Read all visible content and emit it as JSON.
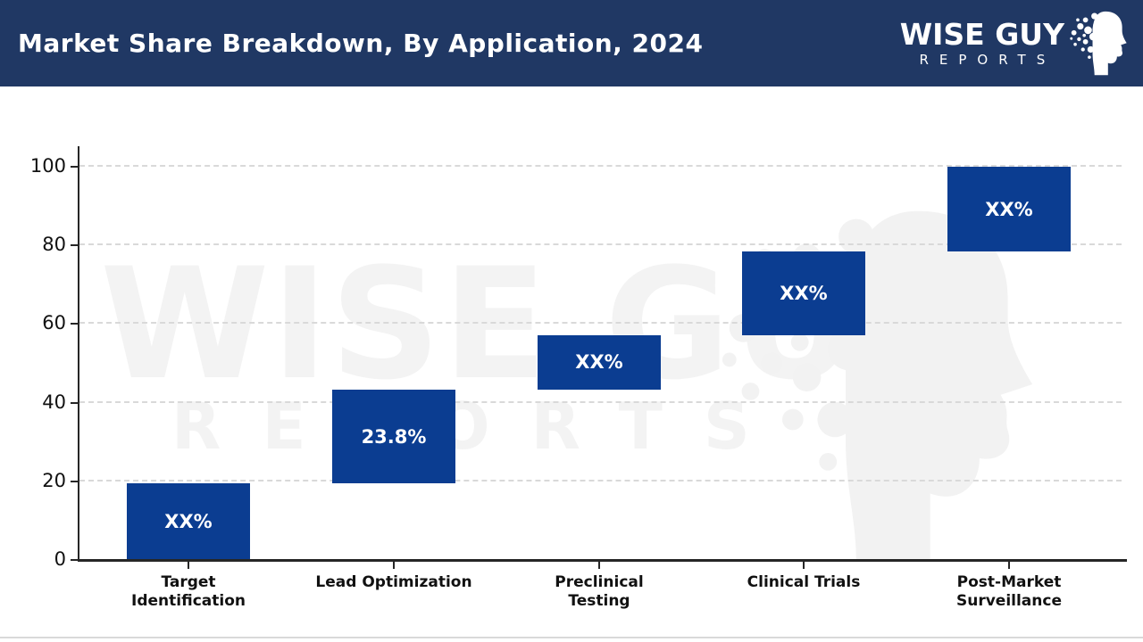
{
  "header": {
    "title": "Market Share Breakdown, By Application, 2024",
    "logo": {
      "line1": "WISE GUY",
      "line2": "REPORTS"
    }
  },
  "watermark": {
    "line1": "WISE GUY",
    "line2": "REPORTS"
  },
  "colors": {
    "header_bg": "#203864",
    "bar": "#0b3d91",
    "bar_label": "#ffffff",
    "axis": "#262626",
    "grid": "#d9d9d9",
    "tick_text": "#111111",
    "watermark": "#f2f2f2"
  },
  "chart_data": {
    "type": "bar",
    "subtype": "waterfall",
    "title": "Market Share Breakdown, By Application, 2024",
    "xlabel": "",
    "ylabel": "",
    "ylim": [
      0,
      105
    ],
    "yticks": [
      0,
      20,
      40,
      60,
      80,
      100
    ],
    "grid": "horizontal-dashed",
    "legend": null,
    "categories": [
      [
        "Target",
        "Identification"
      ],
      [
        "Lead Optimization"
      ],
      [
        "Preclinical",
        "Testing"
      ],
      [
        "Clinical Trials"
      ],
      [
        "Post-Market",
        "Surveillance"
      ]
    ],
    "bars": [
      {
        "category": "Target Identification",
        "start": 0,
        "end": 19.2,
        "label": "XX%"
      },
      {
        "category": "Lead Optimization",
        "start": 19.2,
        "end": 43,
        "label": "23.8%"
      },
      {
        "category": "Preclinical Testing",
        "start": 43,
        "end": 57,
        "label": "XX%"
      },
      {
        "category": "Clinical Trials",
        "start": 57,
        "end": 78.2,
        "label": "XX%"
      },
      {
        "category": "Post-Market Surveillance",
        "start": 78.2,
        "end": 99.8,
        "label": "XX%"
      }
    ]
  }
}
